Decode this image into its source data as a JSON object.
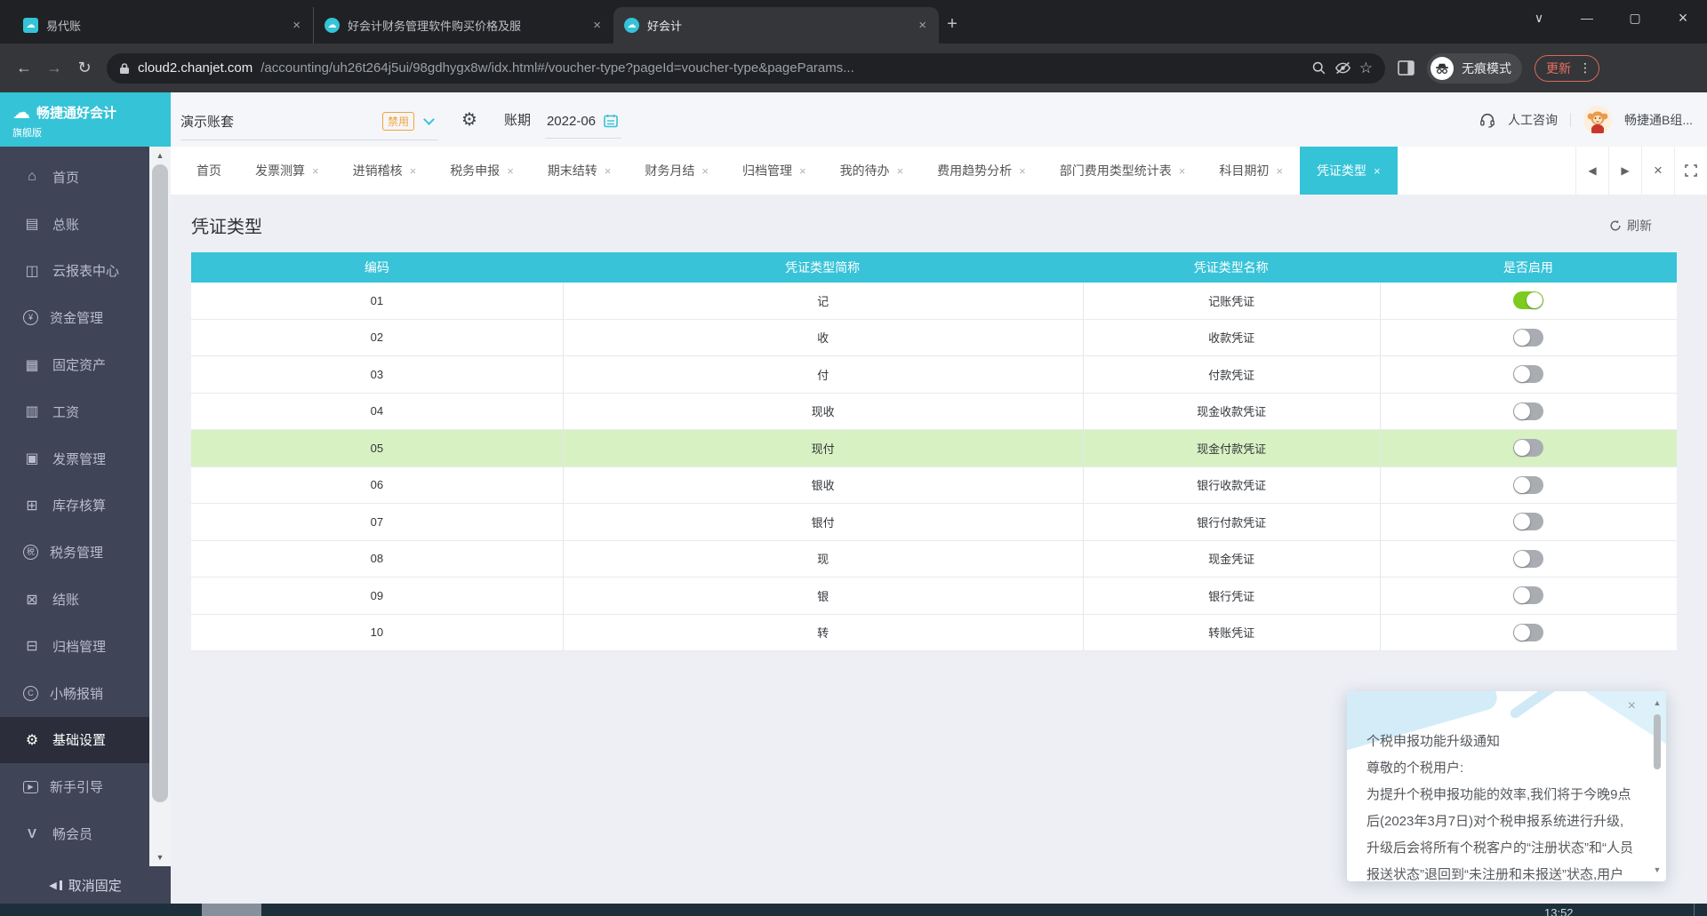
{
  "icons": {
    "cloud": "☁",
    "close": "×",
    "new_tab": "+",
    "chevron_down_win": "∨",
    "minimize": "—",
    "maximize": "▢",
    "win_close": "×",
    "back": "←",
    "forward": "→",
    "reload": "↻",
    "star": "☆",
    "menu_dots": "⋮",
    "prev": "◀",
    "next": "▶",
    "close_all": "×",
    "up": "▲",
    "down": "▼",
    "unpin_arrow": "◀",
    "gear": "⚙"
  },
  "browser": {
    "tabs": [
      {
        "title": "易代账",
        "active": false
      },
      {
        "title": "好会计财务管理软件购买价格及服",
        "active": false
      },
      {
        "title": "好会计",
        "active": true
      }
    ],
    "url_domain": "cloud2.chanjet.com",
    "url_path": "/accounting/uh26t264j5ui/98gdhygx8w/idx.html#/voucher-type?pageId=voucher-type&pageParams...",
    "incognito_label": "无痕模式",
    "update_label": "更新"
  },
  "app_header": {
    "brand": "畅捷通好会计",
    "brand_edition": "旗舰版",
    "account_set": "演示账套",
    "disabled_badge": "禁用",
    "period_label": "账期",
    "period_value": "2022-06",
    "support_label": "人工咨询",
    "user_label": "畅捷通B组..."
  },
  "sidebar": {
    "items": [
      {
        "key": "home",
        "label": "首页",
        "icon": "⌂",
        "icon_name": "home-icon",
        "style": "plain",
        "active": false
      },
      {
        "key": "general-ledger",
        "label": "总账",
        "icon": "▤",
        "icon_name": "ledger-icon",
        "style": "plain",
        "active": false
      },
      {
        "key": "cloud-reports",
        "label": "云报表中心",
        "icon": "◫",
        "icon_name": "report-chart-icon",
        "style": "plain",
        "active": false
      },
      {
        "key": "funds",
        "label": "资金管理",
        "icon": "¥",
        "icon_name": "money-bag-icon",
        "style": "circ",
        "active": false
      },
      {
        "key": "fixed-assets",
        "label": "固定资产",
        "icon": "▦",
        "icon_name": "building-icon",
        "style": "plain",
        "active": false
      },
      {
        "key": "payroll",
        "label": "工资",
        "icon": "▥",
        "icon_name": "payroll-icon",
        "style": "plain",
        "active": false
      },
      {
        "key": "invoice",
        "label": "发票管理",
        "icon": "▣",
        "icon_name": "invoice-icon",
        "style": "plain",
        "active": false
      },
      {
        "key": "inventory",
        "label": "库存核算",
        "icon": "⊞",
        "icon_name": "warehouse-icon",
        "style": "plain",
        "active": false
      },
      {
        "key": "tax",
        "label": "税务管理",
        "icon": "税",
        "icon_name": "tax-icon",
        "style": "circ",
        "active": false
      },
      {
        "key": "closing",
        "label": "结账",
        "icon": "⊠",
        "icon_name": "closing-book-icon",
        "style": "plain",
        "active": false
      },
      {
        "key": "archive",
        "label": "归档管理",
        "icon": "⊟",
        "icon_name": "archive-box-icon",
        "style": "plain",
        "active": false
      },
      {
        "key": "reimburse",
        "label": "小畅报销",
        "icon": "C",
        "icon_name": "reimburse-logo-icon",
        "style": "circ",
        "active": false
      },
      {
        "key": "settings",
        "label": "基础设置",
        "icon": "⚙",
        "icon_name": "gear-icon",
        "style": "plain",
        "active": true
      },
      {
        "key": "guide",
        "label": "新手引导",
        "icon": "▶",
        "icon_name": "play-video-icon",
        "style": "boxed",
        "active": false
      },
      {
        "key": "member",
        "label": "畅会员",
        "icon": "V",
        "icon_name": "member-v-icon",
        "style": "vbold",
        "active": false
      }
    ],
    "unpin": "取消固定"
  },
  "page_tabs": {
    "items": [
      {
        "label": "首页",
        "closable": false,
        "active": false
      },
      {
        "label": "发票测算",
        "closable": true,
        "active": false
      },
      {
        "label": "进销稽核",
        "closable": true,
        "active": false
      },
      {
        "label": "税务申报",
        "closable": true,
        "active": false
      },
      {
        "label": "期末结转",
        "closable": true,
        "active": false
      },
      {
        "label": "财务月结",
        "closable": true,
        "active": false
      },
      {
        "label": "归档管理",
        "closable": true,
        "active": false
      },
      {
        "label": "我的待办",
        "closable": true,
        "active": false
      },
      {
        "label": "费用趋势分析",
        "closable": true,
        "active": false
      },
      {
        "label": "部门费用类型统计表",
        "closable": true,
        "active": false
      },
      {
        "label": "科目期初",
        "closable": true,
        "active": false
      },
      {
        "label": "凭证类型",
        "closable": true,
        "active": true
      }
    ]
  },
  "main": {
    "title": "凭证类型",
    "refresh_label": "刷新",
    "table": {
      "columns": [
        "编码",
        "凭证类型简称",
        "凭证类型名称",
        "是否启用"
      ],
      "rows": [
        {
          "code": "01",
          "short": "记",
          "name": "记账凭证",
          "enabled": true,
          "highlight": false
        },
        {
          "code": "02",
          "short": "收",
          "name": "收款凭证",
          "enabled": false,
          "highlight": false
        },
        {
          "code": "03",
          "short": "付",
          "name": "付款凭证",
          "enabled": false,
          "highlight": false
        },
        {
          "code": "04",
          "short": "现收",
          "name": "现金收款凭证",
          "enabled": false,
          "highlight": false
        },
        {
          "code": "05",
          "short": "现付",
          "name": "现金付款凭证",
          "enabled": false,
          "highlight": true
        },
        {
          "code": "06",
          "short": "银收",
          "name": "银行收款凭证",
          "enabled": false,
          "highlight": false
        },
        {
          "code": "07",
          "short": "银付",
          "name": "银行付款凭证",
          "enabled": false,
          "highlight": false
        },
        {
          "code": "08",
          "short": "现",
          "name": "现金凭证",
          "enabled": false,
          "highlight": false
        },
        {
          "code": "09",
          "short": "银",
          "name": "银行凭证",
          "enabled": false,
          "highlight": false
        },
        {
          "code": "10",
          "short": "转",
          "name": "转账凭证",
          "enabled": false,
          "highlight": false
        }
      ]
    }
  },
  "notification": {
    "title": "个税申报功能升级通知",
    "greeting": "尊敬的个税用户:",
    "body": "为提升个税申报功能的效率,我们将于今晚9点后(2023年3月7日)对个税申报系统进行升级,升级后会将所有个税客户的“注册状态”和“人员报送状态”退回到“未注册和未报送”状态,用户需要重新执行一次“注册信息和人员报送”成功后才"
  },
  "taskbar": {
    "clock": "13:52"
  }
}
